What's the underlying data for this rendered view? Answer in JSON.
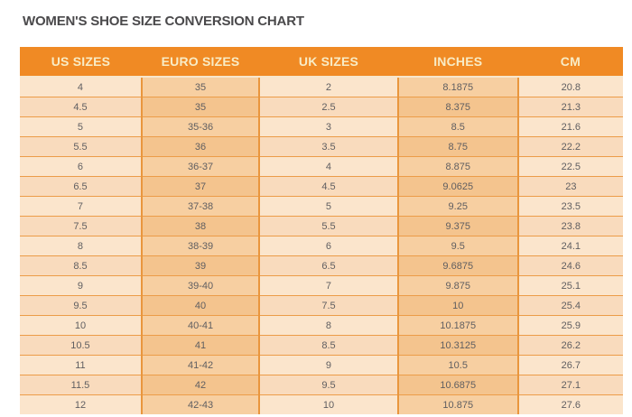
{
  "title": "WOMEN'S SHOE SIZE CONVERSION CHART",
  "colors": {
    "header_background": "#f08a24",
    "header_text": "#f8ecc6",
    "title_text": "#4a494b",
    "cell_text": "#5f5e61",
    "light_cell_odd": "#fbe5cc",
    "light_cell_even": "#f9dbbd",
    "dark_cell_odd": "#f7cfa1",
    "dark_cell_even": "#f4c48e",
    "row_border": "#ec9c48",
    "column_border": "#e9963d"
  },
  "chart_data": {
    "type": "table",
    "title": "WOMEN'S SHOE SIZE CONVERSION CHART",
    "columns": [
      "US SIZES",
      "EURO SIZES",
      "UK SIZES",
      "INCHES",
      "CM"
    ],
    "rows": [
      [
        "4",
        "35",
        "2",
        "8.1875",
        "20.8"
      ],
      [
        "4.5",
        "35",
        "2.5",
        "8.375",
        "21.3"
      ],
      [
        "5",
        "35-36",
        "3",
        "8.5",
        "21.6"
      ],
      [
        "5.5",
        "36",
        "3.5",
        "8.75",
        "22.2"
      ],
      [
        "6",
        "36-37",
        "4",
        "8.875",
        "22.5"
      ],
      [
        "6.5",
        "37",
        "4.5",
        "9.0625",
        "23"
      ],
      [
        "7",
        "37-38",
        "5",
        "9.25",
        "23.5"
      ],
      [
        "7.5",
        "38",
        "5.5",
        "9.375",
        "23.8"
      ],
      [
        "8",
        "38-39",
        "6",
        "9.5",
        "24.1"
      ],
      [
        "8.5",
        "39",
        "6.5",
        "9.6875",
        "24.6"
      ],
      [
        "9",
        "39-40",
        "7",
        "9.875",
        "25.1"
      ],
      [
        "9.5",
        "40",
        "7.5",
        "10",
        "25.4"
      ],
      [
        "10",
        "40-41",
        "8",
        "10.1875",
        "25.9"
      ],
      [
        "10.5",
        "41",
        "8.5",
        "10.3125",
        "26.2"
      ],
      [
        "11",
        "41-42",
        "9",
        "10.5",
        "26.7"
      ],
      [
        "11.5",
        "42",
        "9.5",
        "10.6875",
        "27.1"
      ],
      [
        "12",
        "42-43",
        "10",
        "10.875",
        "27.6"
      ]
    ]
  }
}
